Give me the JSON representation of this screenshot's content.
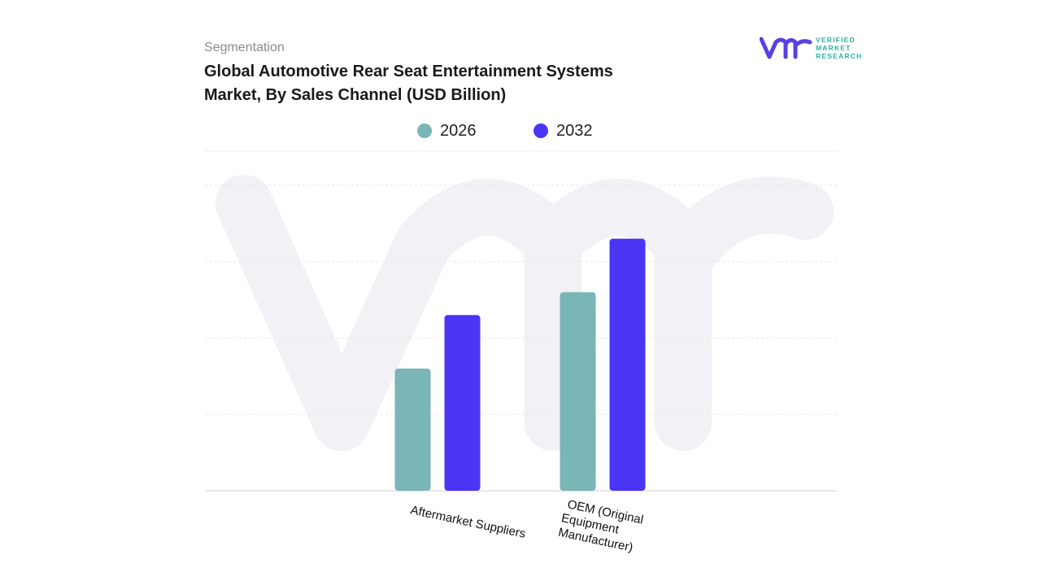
{
  "header": {
    "eyebrow": "Segmentation",
    "title_line1": "Global Automotive Rear Seat Entertainment Systems",
    "title_line2": "Market, By Sales Channel (USD Billion)"
  },
  "logo": {
    "line1": "VERIFIED",
    "line2": "MARKET",
    "line3": "RESEARCH",
    "icon": "vmr-logo-icon"
  },
  "colors": {
    "series_2026": "#7ab5b8",
    "series_2032": "#4b35f5",
    "logo_purple": "#5a3fe0",
    "logo_teal": "#2bb3a5"
  },
  "chart_data": {
    "type": "bar",
    "categories": [
      "Aftermarket Suppliers",
      "OEM (Original Equipment Manufacturer)"
    ],
    "series": [
      {
        "name": "2026",
        "values": [
          1.6,
          2.6
        ]
      },
      {
        "name": "2032",
        "values": [
          2.3,
          3.3
        ]
      }
    ],
    "ylim": [
      0,
      4
    ],
    "grid": true,
    "legend_position": "top-center",
    "xlabel": "",
    "ylabel": ""
  }
}
